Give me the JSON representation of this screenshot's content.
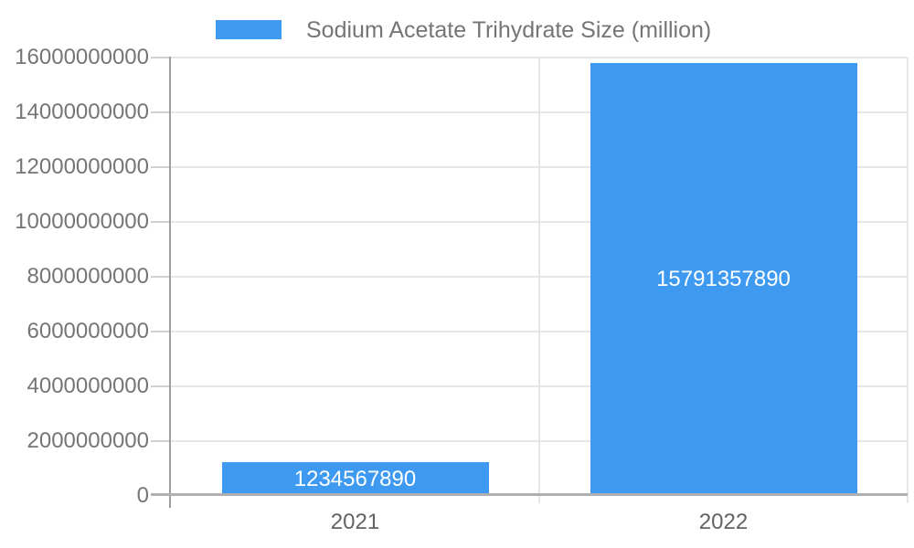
{
  "legend": {
    "label": "Sodium Acetate Trihydrate Size (million)",
    "swatch_color": "#3e9af0"
  },
  "chart_data": {
    "type": "bar",
    "title": "",
    "xlabel": "",
    "ylabel": "",
    "categories": [
      "2021",
      "2022"
    ],
    "series": [
      {
        "name": "Sodium Acetate Trihydrate Size (million)",
        "values": [
          1234567890,
          15791357890
        ]
      }
    ],
    "bar_labels": [
      "1234567890",
      "15791357890"
    ],
    "ylim": [
      0,
      16000000000
    ],
    "ytick_interval": 2000000000,
    "ytick_labels": [
      "0",
      "2000000000",
      "4000000000",
      "6000000000",
      "8000000000",
      "10000000000",
      "12000000000",
      "14000000000",
      "16000000000"
    ],
    "grid": true,
    "legend_position": "top",
    "colors": {
      "bar": "#3e9af0",
      "bar_label_text": "#ffffff",
      "y_axis_text": "#757575",
      "x_axis_text": "#636363",
      "grid_line": "#e6e6e6",
      "tick_line": "#cfcfcf",
      "y_axis_line": "#9e9e9e",
      "baseline": "#b0b0b0",
      "background": "#ffffff"
    }
  }
}
